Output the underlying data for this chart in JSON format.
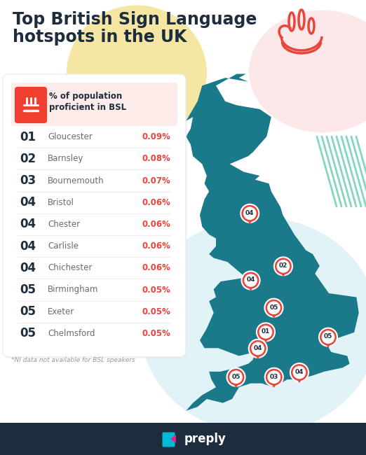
{
  "title_line1": "Top British Sign Language",
  "title_line2": "hotspots in the UK",
  "legend_title_line1": "% of population",
  "legend_title_line2": "proficient in BSL",
  "footnote": "*NI data not available for BSL speakers",
  "bg_color": "#ffffff",
  "footer_color": "#1e2d3d",
  "legend_box_bg": "#fdecea",
  "legend_icon_bg": "#f03e2f",
  "blob_yellow": "#f5e6a3",
  "blob_pink": "#fce8e8",
  "blob_lightblue": "#d6eef5",
  "map_color": "#1a7a8a",
  "stripe_color": "#6ecfb5",
  "pin_color": "#e8453c",
  "pin_white": "#ffffff",
  "rank_color": "#1e2d3d",
  "city_color": "#6b6b6b",
  "value_color": "#e8453c",
  "title_color": "#1e2d3d",
  "hand_icon_color": "#e8453c",
  "rows": [
    {
      "rank": "01",
      "city": "Gloucester",
      "value": "0.09%"
    },
    {
      "rank": "02",
      "city": "Barnsley",
      "value": "0.08%"
    },
    {
      "rank": "03",
      "city": "Bournemouth",
      "value": "0.07%"
    },
    {
      "rank": "04",
      "city": "Bristol",
      "value": "0.06%"
    },
    {
      "rank": "04",
      "city": "Chester",
      "value": "0.06%"
    },
    {
      "rank": "04",
      "city": "Carlisle",
      "value": "0.06%"
    },
    {
      "rank": "04",
      "city": "Chichester",
      "value": "0.06%"
    },
    {
      "rank": "05",
      "city": "Birmingham",
      "value": "0.05%"
    },
    {
      "rank": "05",
      "city": "Exeter",
      "value": "0.05%"
    },
    {
      "rank": "05",
      "city": "Chelmsford",
      "value": "0.05%"
    }
  ],
  "city_pins": [
    {
      "label": "04",
      "lat": 54.9,
      "lon": -2.93
    },
    {
      "label": "02",
      "lat": 53.55,
      "lon": -1.48
    },
    {
      "label": "04",
      "lat": 53.19,
      "lon": -2.89
    },
    {
      "label": "05",
      "lat": 52.49,
      "lon": -1.89
    },
    {
      "label": "01",
      "lat": 51.87,
      "lon": -2.24
    },
    {
      "label": "04",
      "lat": 51.45,
      "lon": -2.58
    },
    {
      "label": "05",
      "lat": 51.74,
      "lon": 0.47
    },
    {
      "label": "05",
      "lat": 50.72,
      "lon": -3.53
    },
    {
      "label": "03",
      "lat": 50.72,
      "lon": -1.88
    },
    {
      "label": "04",
      "lat": 50.84,
      "lon": -0.78
    }
  ]
}
